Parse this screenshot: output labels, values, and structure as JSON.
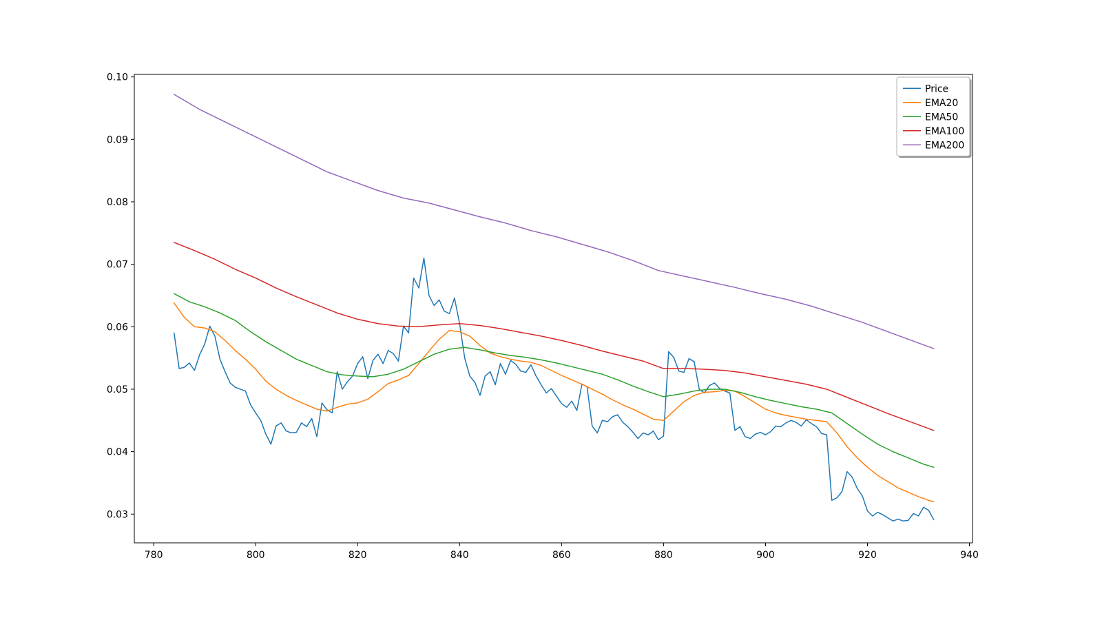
{
  "figure": {
    "background": "#ffffff",
    "axes_edge_color": "#000000",
    "tick_label_color": "#000000"
  },
  "chart_data": {
    "type": "line",
    "title": "",
    "xlabel": "",
    "ylabel": "",
    "grid": false,
    "legend_position": "upper right",
    "xlim": [
      776.2,
      940.6
    ],
    "ylim": [
      0.0254,
      0.1004
    ],
    "x_ticks": [
      780,
      800,
      820,
      840,
      860,
      880,
      900,
      920,
      940
    ],
    "y_ticks": [
      0.03,
      0.04,
      0.05,
      0.06,
      0.07,
      0.08,
      0.09,
      0.1
    ],
    "series": [
      {
        "name": "Price",
        "color": "#1f77b4",
        "x_start": 784,
        "x_step": 1,
        "y": [
          0.059,
          0.0533,
          0.0535,
          0.0542,
          0.053,
          0.0555,
          0.0572,
          0.0601,
          0.0585,
          0.0548,
          0.0528,
          0.051,
          0.0503,
          0.05,
          0.0497,
          0.0475,
          0.0462,
          0.045,
          0.0428,
          0.0412,
          0.0441,
          0.0446,
          0.0433,
          0.043,
          0.0431,
          0.0446,
          0.044,
          0.0453,
          0.0424,
          0.0478,
          0.0467,
          0.0462,
          0.0528,
          0.05,
          0.0512,
          0.0521,
          0.0541,
          0.0552,
          0.0517,
          0.0546,
          0.0556,
          0.0541,
          0.0562,
          0.0557,
          0.0545,
          0.0601,
          0.059,
          0.0678,
          0.0662,
          0.071,
          0.065,
          0.0634,
          0.0643,
          0.0625,
          0.0621,
          0.0646,
          0.0605,
          0.055,
          0.0521,
          0.0511,
          0.049,
          0.0521,
          0.0528,
          0.0507,
          0.0541,
          0.0524,
          0.0546,
          0.054,
          0.0529,
          0.0527,
          0.0539,
          0.0521,
          0.0507,
          0.0494,
          0.0501,
          0.0489,
          0.0477,
          0.0471,
          0.0481,
          0.0466,
          0.0508,
          0.0504,
          0.0441,
          0.043,
          0.045,
          0.0448,
          0.0456,
          0.0459,
          0.0447,
          0.044,
          0.0431,
          0.0421,
          0.043,
          0.0427,
          0.0433,
          0.0419,
          0.0425,
          0.056,
          0.0551,
          0.0529,
          0.0527,
          0.0549,
          0.0544,
          0.05,
          0.0494,
          0.0506,
          0.051,
          0.0501,
          0.0497,
          0.0494,
          0.0434,
          0.044,
          0.0424,
          0.0421,
          0.0428,
          0.0431,
          0.0427,
          0.0432,
          0.0441,
          0.044,
          0.0446,
          0.045,
          0.0447,
          0.0441,
          0.0451,
          0.0445,
          0.044,
          0.0429,
          0.0427,
          0.0322,
          0.0326,
          0.0336,
          0.0368,
          0.0359,
          0.0341,
          0.0329,
          0.0305,
          0.0297,
          0.0303,
          0.0299,
          0.0294,
          0.0289,
          0.0292,
          0.0289,
          0.029,
          0.0301,
          0.0297,
          0.0311,
          0.0306,
          0.0291
        ]
      },
      {
        "name": "EMA20",
        "color": "#ff7f0e",
        "x": [
          784,
          786,
          788,
          790,
          792,
          794,
          796,
          798,
          800,
          802,
          804,
          806,
          808,
          810,
          812,
          814,
          816,
          818,
          820,
          822,
          824,
          826,
          828,
          830,
          832,
          834,
          836,
          838,
          840,
          842,
          844,
          846,
          848,
          850,
          852,
          854,
          856,
          858,
          860,
          862,
          864,
          866,
          868,
          870,
          872,
          874,
          876,
          878,
          880,
          882,
          884,
          886,
          888,
          890,
          892,
          894,
          896,
          898,
          900,
          902,
          904,
          906,
          908,
          910,
          912,
          914,
          916,
          918,
          920,
          922,
          924,
          926,
          928,
          930,
          932,
          933
        ],
        "y": [
          0.0638,
          0.0615,
          0.06,
          0.0598,
          0.0592,
          0.0578,
          0.0562,
          0.0548,
          0.0532,
          0.0513,
          0.05,
          0.049,
          0.0482,
          0.0475,
          0.0468,
          0.0465,
          0.0471,
          0.0476,
          0.0478,
          0.0484,
          0.0496,
          0.0509,
          0.0515,
          0.0522,
          0.0541,
          0.0561,
          0.058,
          0.0594,
          0.0592,
          0.0585,
          0.057,
          0.0558,
          0.0552,
          0.0548,
          0.0545,
          0.0543,
          0.0538,
          0.053,
          0.0522,
          0.0515,
          0.0508,
          0.05,
          0.0492,
          0.0483,
          0.0475,
          0.0468,
          0.046,
          0.0452,
          0.045,
          0.0465,
          0.048,
          0.049,
          0.0495,
          0.0496,
          0.0498,
          0.0497,
          0.0488,
          0.0478,
          0.0468,
          0.0462,
          0.0458,
          0.0455,
          0.0452,
          0.045,
          0.0448,
          0.043,
          0.0408,
          0.039,
          0.0375,
          0.0362,
          0.0352,
          0.0342,
          0.0335,
          0.0328,
          0.0322,
          0.032
        ]
      },
      {
        "name": "EMA50",
        "color": "#2ca02c",
        "x": [
          784,
          787,
          790,
          793,
          796,
          799,
          802,
          805,
          808,
          811,
          814,
          817,
          820,
          823,
          826,
          829,
          832,
          835,
          838,
          841,
          844,
          847,
          850,
          853,
          856,
          859,
          862,
          865,
          868,
          871,
          874,
          877,
          880,
          883,
          886,
          889,
          892,
          895,
          898,
          901,
          904,
          907,
          910,
          913,
          916,
          919,
          922,
          925,
          928,
          931,
          933
        ],
        "y": [
          0.0653,
          0.064,
          0.0632,
          0.0622,
          0.061,
          0.0592,
          0.0576,
          0.0562,
          0.0548,
          0.0538,
          0.0528,
          0.0523,
          0.0521,
          0.052,
          0.0524,
          0.0532,
          0.0544,
          0.0556,
          0.0564,
          0.0567,
          0.0563,
          0.0558,
          0.0554,
          0.0551,
          0.0547,
          0.0542,
          0.0536,
          0.053,
          0.0524,
          0.0515,
          0.0505,
          0.0496,
          0.0488,
          0.0492,
          0.0497,
          0.05,
          0.05,
          0.0495,
          0.0488,
          0.0482,
          0.0477,
          0.0472,
          0.0468,
          0.0462,
          0.0445,
          0.0428,
          0.0412,
          0.04,
          0.039,
          0.038,
          0.0375
        ]
      },
      {
        "name": "EMA100",
        "color": "#d62728",
        "x": [
          784,
          788,
          792,
          796,
          800,
          804,
          808,
          812,
          816,
          820,
          824,
          828,
          832,
          836,
          840,
          844,
          848,
          852,
          856,
          860,
          864,
          868,
          872,
          876,
          880,
          884,
          888,
          892,
          896,
          900,
          904,
          908,
          912,
          916,
          920,
          924,
          928,
          932,
          933
        ],
        "y": [
          0.0735,
          0.0722,
          0.0708,
          0.0692,
          0.0678,
          0.0662,
          0.0648,
          0.0635,
          0.0622,
          0.0612,
          0.0605,
          0.0601,
          0.06,
          0.0603,
          0.0605,
          0.0602,
          0.0597,
          0.0591,
          0.0585,
          0.0578,
          0.057,
          0.0561,
          0.0553,
          0.0545,
          0.0533,
          0.0533,
          0.0532,
          0.053,
          0.0526,
          0.052,
          0.0514,
          0.0508,
          0.05,
          0.0487,
          0.0474,
          0.0461,
          0.0449,
          0.0437,
          0.0434
        ]
      },
      {
        "name": "EMA200",
        "color": "#9467bd",
        "x": [
          784,
          789,
          794,
          799,
          804,
          809,
          814,
          819,
          824,
          829,
          834,
          839,
          844,
          849,
          854,
          859,
          864,
          869,
          874,
          879,
          884,
          889,
          894,
          899,
          904,
          909,
          914,
          919,
          924,
          929,
          933
        ],
        "y": [
          0.0972,
          0.0948,
          0.0928,
          0.0908,
          0.0888,
          0.0868,
          0.0848,
          0.0833,
          0.0818,
          0.0806,
          0.0798,
          0.0787,
          0.0776,
          0.0766,
          0.0754,
          0.0744,
          0.0732,
          0.072,
          0.0706,
          0.069,
          0.0681,
          0.0672,
          0.0663,
          0.0653,
          0.0644,
          0.0633,
          0.062,
          0.0607,
          0.0592,
          0.0577,
          0.0565
        ]
      }
    ]
  }
}
